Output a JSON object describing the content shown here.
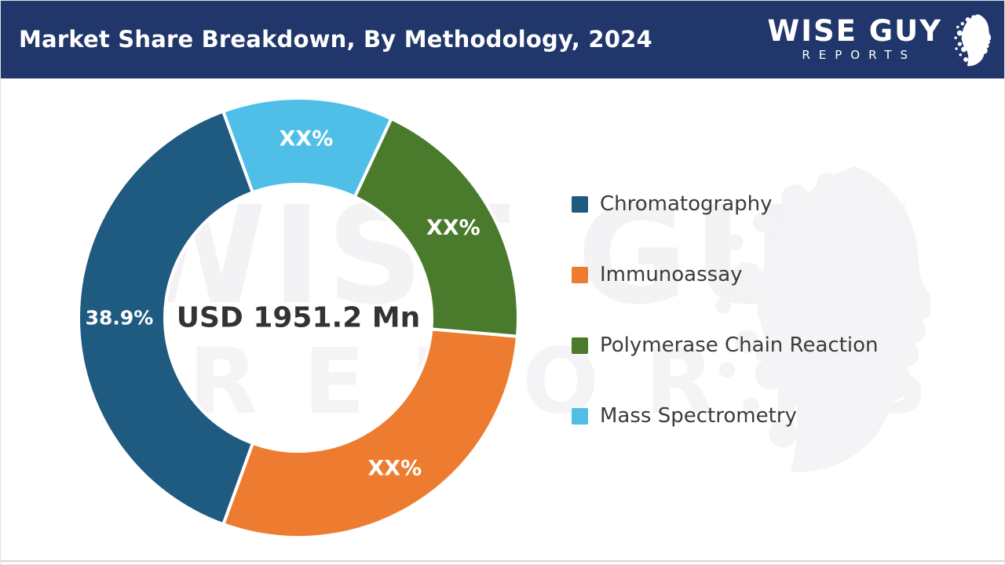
{
  "header": {
    "title": "Market Share Breakdown, By Methodology, 2024",
    "bg_color": "#21376b",
    "logo": {
      "line1": "WISE GUY",
      "line2": "REPORTS"
    }
  },
  "watermark": {
    "line1": "WISE GUY",
    "line2": "REPORTS"
  },
  "chart_data": {
    "type": "pie",
    "subtype": "donut",
    "title": "Market Share Breakdown, By Methodology, 2024",
    "center_text": "USD 1951.2 Mn",
    "start_angle_deg": 110,
    "direction": "counterclockwise",
    "label_color": "#ffffff",
    "legend_position": "right",
    "series": [
      {
        "name": "Chromatography",
        "value": 38.9,
        "display_label": "38.9%",
        "color": "#1f5a80"
      },
      {
        "name": "Immunoassay",
        "value": 29.2,
        "display_label": "XX%",
        "color": "#ee7c30"
      },
      {
        "name": "Polymerase Chain Reaction",
        "value": 19.4,
        "display_label": "XX%",
        "color": "#4a7a2c"
      },
      {
        "name": "Mass Spectrometry",
        "value": 12.5,
        "display_label": "XX%",
        "color": "#4fbfe8"
      }
    ]
  }
}
